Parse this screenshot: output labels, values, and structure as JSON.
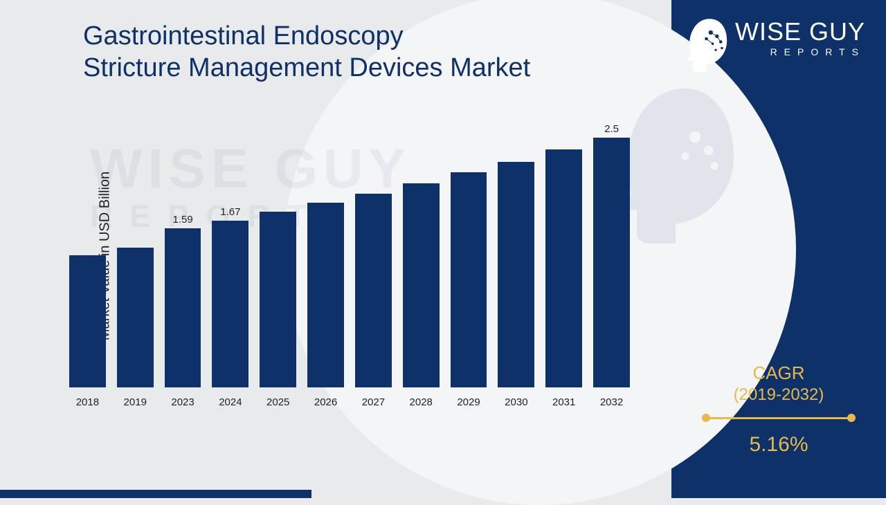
{
  "title_line1": "Gastrointestinal Endoscopy",
  "title_line2": "Stricture Management Devices Market",
  "y_axis_label": "Market Value in USD Billion",
  "logo": {
    "main": "WISE GUY",
    "sub": "REPORTS"
  },
  "cagr": {
    "label": "CAGR",
    "period": "(2019-2032)",
    "value": "5.16%"
  },
  "chart": {
    "type": "bar",
    "bar_color": "#0d3168",
    "background_color": "#e9eaec",
    "circle_color": "#f4f5f6",
    "panel_color": "#0d3168",
    "accent_color": "#e8b94a",
    "text_color": "#222222",
    "title_color": "#0d3168",
    "max_value": 2.7,
    "bar_width_ratio": 0.75,
    "categories": [
      "2018",
      "2019",
      "2023",
      "2024",
      "2025",
      "2026",
      "2027",
      "2028",
      "2029",
      "2030",
      "2031",
      "2032"
    ],
    "values": [
      1.32,
      1.4,
      1.59,
      1.67,
      1.76,
      1.85,
      1.94,
      2.04,
      2.15,
      2.26,
      2.38,
      2.5
    ],
    "value_labels": [
      "",
      "",
      "1.59",
      "1.67",
      "",
      "",
      "",
      "",
      "",
      "",
      "",
      "2.5"
    ]
  },
  "watermark_main": "WISE GUY",
  "watermark_sub": "REPORTS"
}
